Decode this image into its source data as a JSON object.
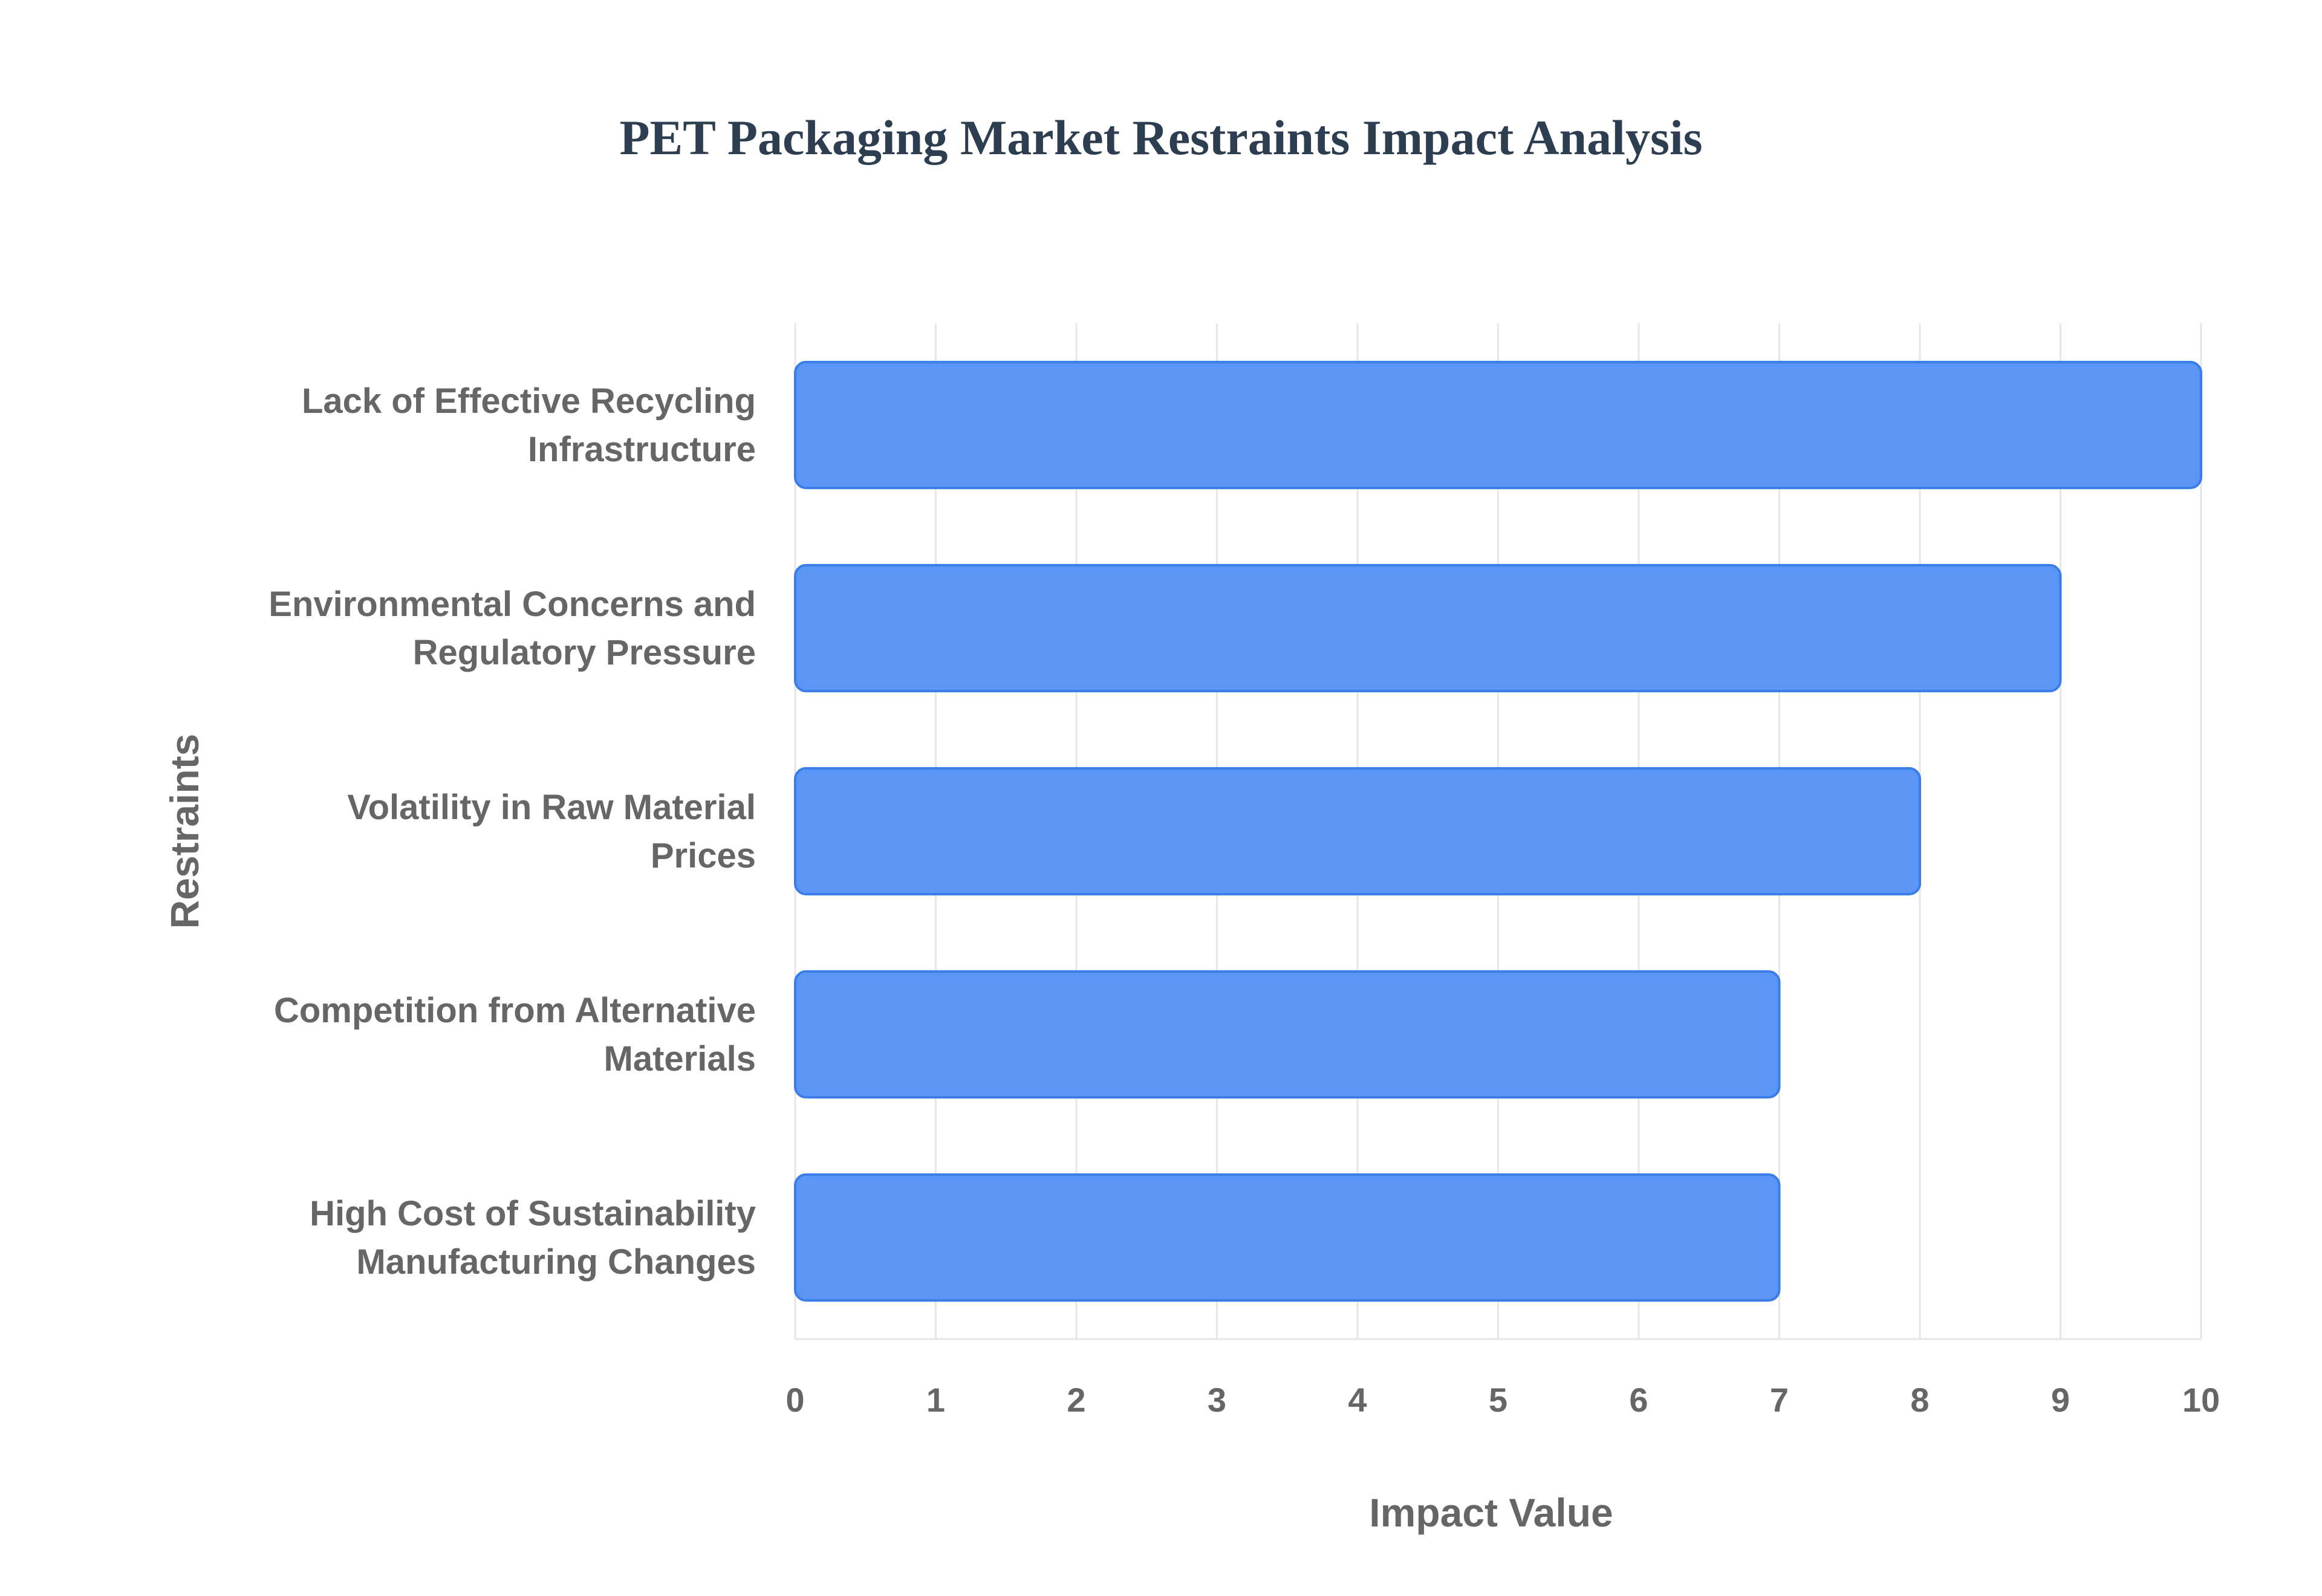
{
  "chart_data": {
    "type": "bar",
    "orientation": "horizontal",
    "title": "PET Packaging Market Restraints Impact Analysis",
    "xlabel": "Impact Value",
    "ylabel": "Restraints",
    "xlim": [
      0,
      10
    ],
    "x_ticks": [
      "0",
      "1",
      "2",
      "3",
      "4",
      "5",
      "6",
      "7",
      "8",
      "9",
      "10"
    ],
    "categories": [
      [
        "Lack of Effective Recycling",
        "Infrastructure"
      ],
      [
        "Environmental Concerns and",
        "Regulatory Pressure"
      ],
      [
        "Volatility in Raw Material",
        "Prices"
      ],
      [
        "Competition from Alternative",
        "Materials"
      ],
      [
        "High Cost of Sustainability",
        "Manufacturing Changes"
      ]
    ],
    "values": [
      10,
      9,
      8,
      7,
      7
    ],
    "grid": true,
    "legend": "none",
    "colors": {
      "bar_fill": "#5b95f5",
      "bar_stroke": "#3b7de8",
      "title": "#2c3e50",
      "text": "#666666",
      "grid": "#e6e6e6"
    }
  }
}
